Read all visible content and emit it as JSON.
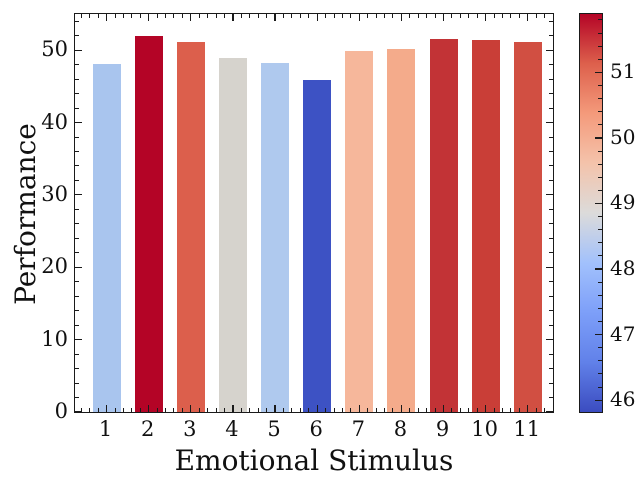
{
  "chart_data": {
    "type": "bar",
    "title": "",
    "xlabel": "Emotional Stimulus",
    "ylabel": "Performance",
    "categories": [
      "1",
      "2",
      "3",
      "4",
      "5",
      "6",
      "7",
      "8",
      "9",
      "10",
      "11"
    ],
    "values": [
      48.1,
      51.9,
      51.1,
      48.9,
      48.2,
      45.9,
      49.9,
      50.1,
      51.6,
      51.4,
      51.2
    ],
    "bar_colors": [
      "#a9c5ee",
      "#b40426",
      "#dc5f4c",
      "#d6d3cd",
      "#afc9ee",
      "#3d52c4",
      "#f6b79b",
      "#f4ab8b",
      "#c23336",
      "#c93e37",
      "#d14f42"
    ],
    "ylim": [
      0,
      55
    ],
    "xlim": [
      0.25,
      11.6
    ],
    "yticks": [
      0,
      10,
      20,
      30,
      40,
      50
    ],
    "ytick_labels": [
      "0",
      "10",
      "20",
      "30",
      "40",
      "50"
    ],
    "y_minor_step": 2,
    "x_minor_step": 0.2,
    "grid": false,
    "legend": null,
    "colormap": "coolwarm",
    "tick_direction": "in",
    "colorbar": {
      "min": 45.82,
      "max": 51.89,
      "ticks": [
        46,
        47,
        48,
        49,
        50,
        51
      ],
      "tick_labels": [
        "46",
        "47",
        "48",
        "49",
        "50",
        "51"
      ],
      "minor_step": 0.2,
      "gradient": [
        {
          "t": 0.0,
          "color": "#3b4cc0"
        },
        {
          "t": 0.125,
          "color": "#6181e9"
        },
        {
          "t": 0.25,
          "color": "#7d9ff9"
        },
        {
          "t": 0.375,
          "color": "#a2c1fc"
        },
        {
          "t": 0.5,
          "color": "#dcdbda"
        },
        {
          "t": 0.625,
          "color": "#f4c3ab"
        },
        {
          "t": 0.75,
          "color": "#f49a7b"
        },
        {
          "t": 0.875,
          "color": "#dd604c"
        },
        {
          "t": 1.0,
          "color": "#b40426"
        }
      ]
    },
    "colors": {
      "spine": "#1a1a1a",
      "text": "#111111",
      "background": "#ffffff"
    }
  }
}
